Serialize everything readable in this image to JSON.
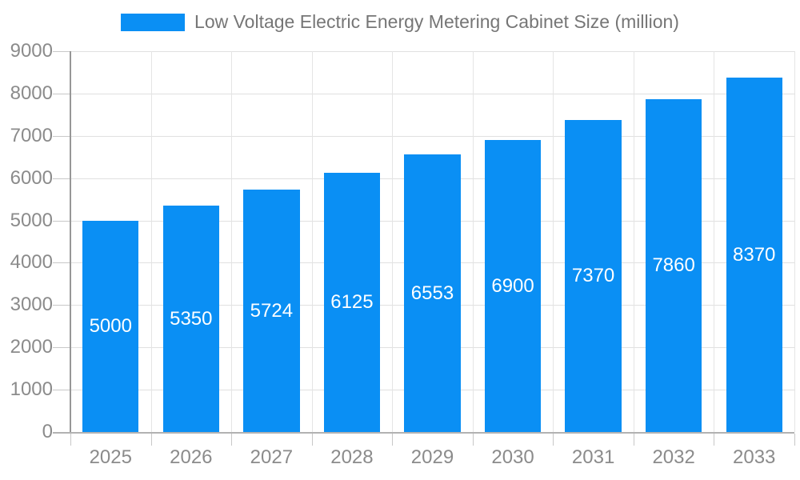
{
  "legend": {
    "label": "Low Voltage Electric Energy Metering Cabinet Size (million)"
  },
  "chart_data": {
    "type": "bar",
    "title": "",
    "series_name": "Low Voltage Electric Energy Metering Cabinet Size (million)",
    "categories": [
      "2025",
      "2026",
      "2027",
      "2028",
      "2029",
      "2030",
      "2031",
      "2032",
      "2033"
    ],
    "values": [
      5000,
      5350,
      5724,
      6125,
      6553,
      6900,
      7370,
      7860,
      8370
    ],
    "value_labels": [
      "5000",
      "5350",
      "5724",
      "6125",
      "6553",
      "6900",
      "7370",
      "7860",
      "8370"
    ],
    "xlabel": "",
    "ylabel": "",
    "ylim": [
      0,
      9000
    ],
    "y_tick_step": 1000,
    "y_tick_labels": [
      "0",
      "1000",
      "2000",
      "3000",
      "4000",
      "5000",
      "6000",
      "7000",
      "8000",
      "9000"
    ],
    "grid": true,
    "legend_position": "top",
    "colors": {
      "bar": "#0a8ff4",
      "bar_value_text": "#ffffff",
      "axis_tick_text": "#8b8b8b",
      "legend_text": "#767676",
      "gridline": "#e0e0e0",
      "axis_line": "#9a9a9a"
    }
  }
}
